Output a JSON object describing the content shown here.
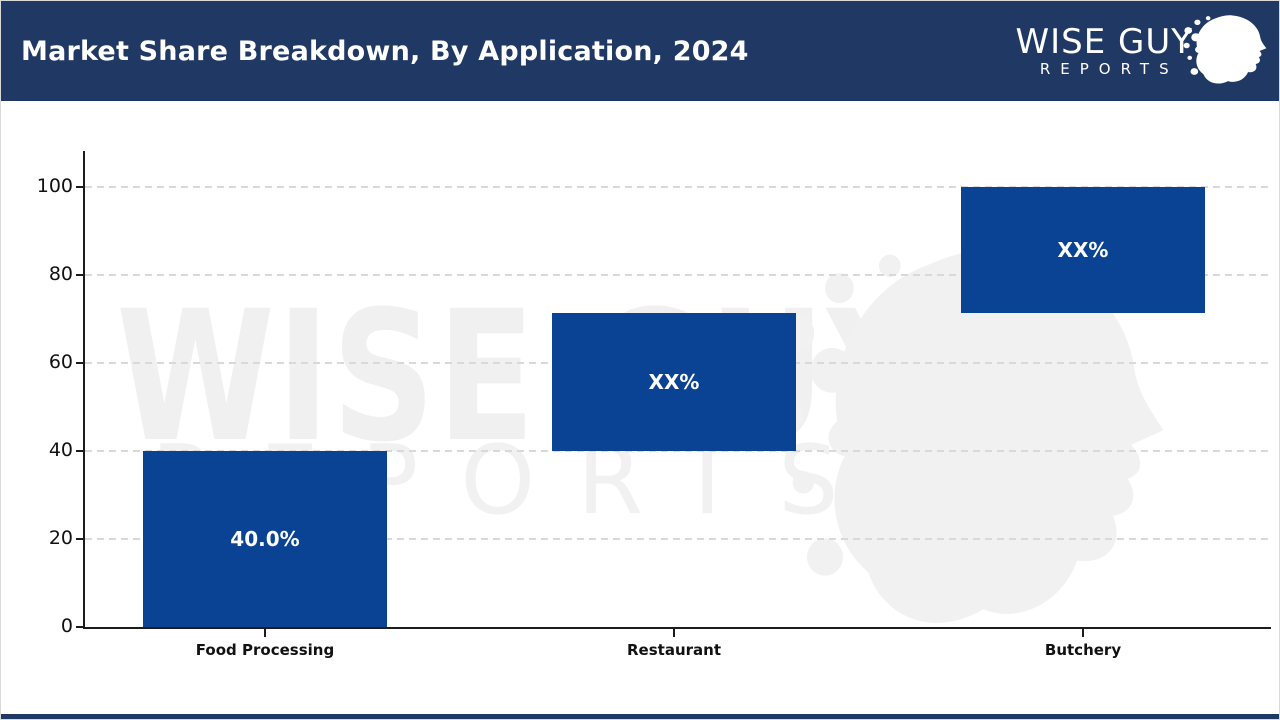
{
  "header": {
    "title": "Market Share Breakdown, By Application, 2024",
    "logo": {
      "line1": "WISE GUY",
      "line2": "REPORTS"
    }
  },
  "watermark": {
    "line1": "WISE GUY",
    "line2": "REPORTS"
  },
  "chart_data": {
    "type": "bar",
    "subtype": "stacked-waterfall-percentage",
    "title": "Market Share Breakdown, By Application, 2024",
    "categories": [
      "Food Processing",
      "Restaurant",
      "Butchery"
    ],
    "segments": [
      {
        "category": "Food Processing",
        "start": 0,
        "end": 40,
        "label": "40.0%"
      },
      {
        "category": "Restaurant",
        "start": 40,
        "end": 71.4,
        "label": "XX%"
      },
      {
        "category": "Butchery",
        "start": 71.4,
        "end": 100,
        "label": "XX%"
      }
    ],
    "yticks": [
      0,
      20,
      40,
      60,
      80,
      100
    ],
    "ylim": [
      0,
      100
    ],
    "grid": "horizontal-dashed",
    "legend": "none",
    "colors": {
      "bar": "#0a4394",
      "header": "#1f3864",
      "grid": "#d9d9d9",
      "axis": "#1c1c1c",
      "bar_label": "#ffffff",
      "watermark": "#f0f0f1"
    }
  }
}
